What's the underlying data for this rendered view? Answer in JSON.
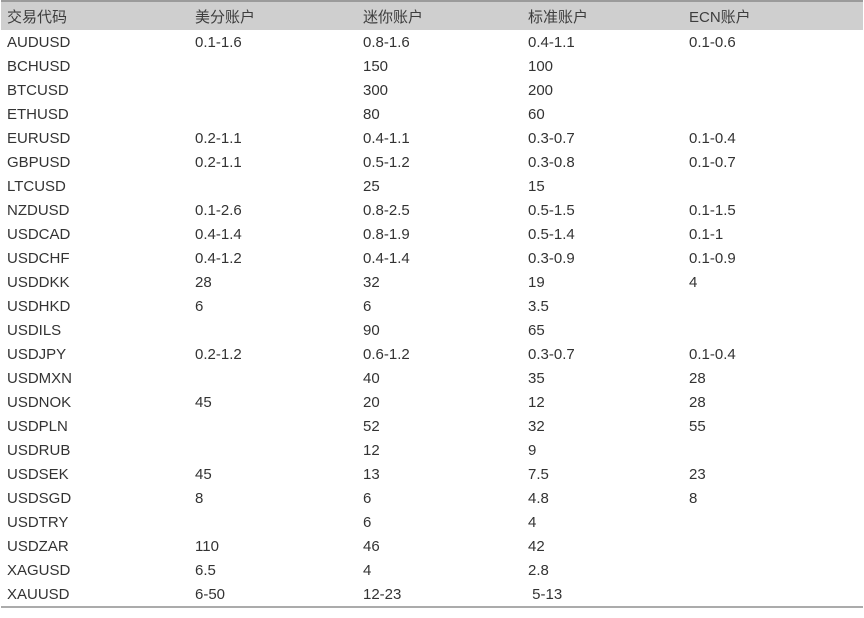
{
  "table": {
    "columns": [
      {
        "key": "code",
        "label": "交易代码"
      },
      {
        "key": "cent",
        "label": "美分账户"
      },
      {
        "key": "mini",
        "label": "迷你账户"
      },
      {
        "key": "standard",
        "label": "标准账户"
      },
      {
        "key": "ecn",
        "label": "ECN账户"
      }
    ],
    "rows": [
      {
        "code": "AUDUSD",
        "cent": "0.1-1.6",
        "mini": "0.8-1.6",
        "standard": "0.4-1.1",
        "ecn": "0.1-0.6"
      },
      {
        "code": "BCHUSD",
        "cent": "",
        "mini": "150",
        "standard": "100",
        "ecn": ""
      },
      {
        "code": "BTCUSD",
        "cent": "",
        "mini": "300",
        "standard": "200",
        "ecn": ""
      },
      {
        "code": "ETHUSD",
        "cent": "",
        "mini": "80",
        "standard": "60",
        "ecn": ""
      },
      {
        "code": "EURUSD",
        "cent": "0.2-1.1",
        "mini": "0.4-1.1",
        "standard": "0.3-0.7",
        "ecn": "0.1-0.4"
      },
      {
        "code": "GBPUSD",
        "cent": "0.2-1.1",
        "mini": "0.5-1.2",
        "standard": "0.3-0.8",
        "ecn": "0.1-0.7"
      },
      {
        "code": "LTCUSD",
        "cent": "",
        "mini": "25",
        "standard": "15",
        "ecn": ""
      },
      {
        "code": "NZDUSD",
        "cent": "0.1-2.6",
        "mini": "0.8-2.5",
        "standard": "0.5-1.5",
        "ecn": "0.1-1.5"
      },
      {
        "code": "USDCAD",
        "cent": "0.4-1.4",
        "mini": "0.8-1.9",
        "standard": "0.5-1.4",
        "ecn": "0.1-1"
      },
      {
        "code": "USDCHF",
        "cent": "0.4-1.2",
        "mini": "0.4-1.4",
        "standard": "0.3-0.9",
        "ecn": "0.1-0.9"
      },
      {
        "code": "USDDKK",
        "cent": "28",
        "mini": "32",
        "standard": "19",
        "ecn": "4"
      },
      {
        "code": "USDHKD",
        "cent": "6",
        "mini": "6",
        "standard": "3.5",
        "ecn": ""
      },
      {
        "code": "USDILS",
        "cent": "",
        "mini": "90",
        "standard": "65",
        "ecn": ""
      },
      {
        "code": "USDJPY",
        "cent": "0.2-1.2",
        "mini": "0.6-1.2",
        "standard": "0.3-0.7",
        "ecn": "0.1-0.4"
      },
      {
        "code": "USDMXN",
        "cent": "",
        "mini": "40",
        "standard": "35",
        "ecn": "28"
      },
      {
        "code": "USDNOK",
        "cent": "45",
        "mini": "20",
        "standard": "12",
        "ecn": "28"
      },
      {
        "code": "USDPLN",
        "cent": "",
        "mini": "52",
        "standard": "32",
        "ecn": "55"
      },
      {
        "code": "USDRUB",
        "cent": "",
        "mini": "12",
        "standard": "9",
        "ecn": ""
      },
      {
        "code": "USDSEK",
        "cent": "45",
        "mini": "13",
        "standard": "7.5",
        "ecn": "23"
      },
      {
        "code": "USDSGD",
        "cent": "8",
        "mini": "6",
        "standard": "4.8",
        "ecn": "8"
      },
      {
        "code": "USDTRY",
        "cent": "",
        "mini": "6",
        "standard": "4",
        "ecn": ""
      },
      {
        "code": "USDZAR",
        "cent": "110",
        "mini": "46",
        "standard": "42",
        "ecn": ""
      },
      {
        "code": "XAGUSD",
        "cent": "6.5",
        "mini": "4",
        "standard": "2.8",
        "ecn": ""
      },
      {
        "code": "XAUUSD",
        "cent": "6-50",
        "mini": "12-23",
        "standard": " 5-13",
        "ecn": ""
      }
    ],
    "colors": {
      "header_background": "#cfcfcf",
      "header_top_border": "#9b9b9b",
      "table_bottom_border": "#ababab",
      "header_text": "#3d3d3d",
      "body_text": "#333333"
    }
  }
}
